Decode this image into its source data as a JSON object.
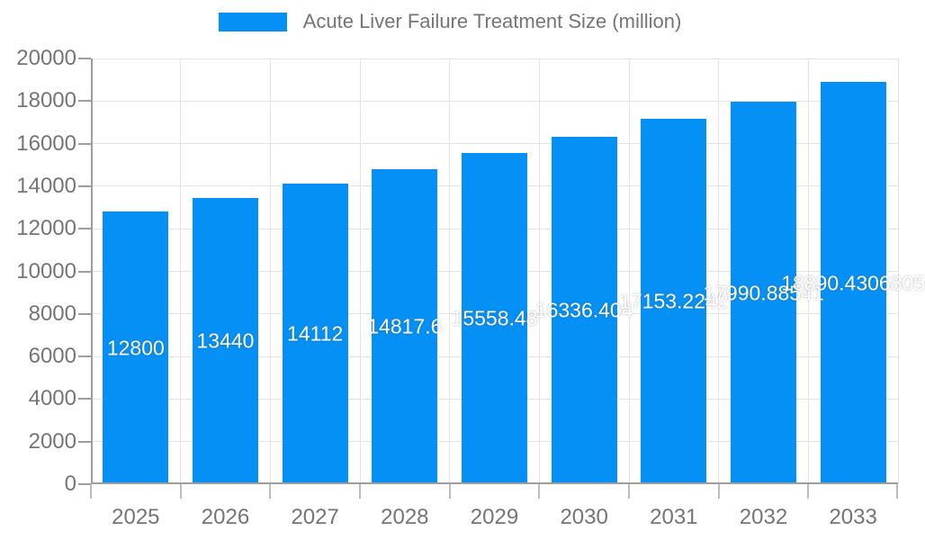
{
  "legend": {
    "label": "Acute Liver Failure Treatment Size (million)"
  },
  "chart_data": {
    "type": "bar",
    "title": "",
    "series_name": "Acute Liver Failure Treatment Size (million)",
    "categories": [
      "2025",
      "2026",
      "2027",
      "2028",
      "2029",
      "2030",
      "2031",
      "2032",
      "2033"
    ],
    "values": [
      12800,
      13440,
      14112,
      14817.6,
      15558.48,
      16336.404,
      17153.2242,
      17990.88541,
      18890.4306805
    ],
    "value_labels": [
      "12800",
      "13440",
      "14112",
      "14817.6",
      "15558.48",
      "16336.404",
      "17153.2242",
      "17990.88541",
      "18890.4306805"
    ],
    "xlabel": "",
    "ylabel": "",
    "ylim": [
      0,
      20000
    ],
    "ytick_step": 2000,
    "ytick_labels": [
      "0",
      "2000",
      "4000",
      "6000",
      "8000",
      "10000",
      "12000",
      "14000",
      "16000",
      "18000",
      "20000"
    ],
    "grid": true,
    "legend_position": "top",
    "colors": {
      "bar": "#0590F5",
      "value_label": "#ffffff",
      "axis_text": "#757575",
      "axis_line": "#9e9e9e",
      "gridline": "#e3e3e3",
      "background": "#ffffff"
    }
  }
}
